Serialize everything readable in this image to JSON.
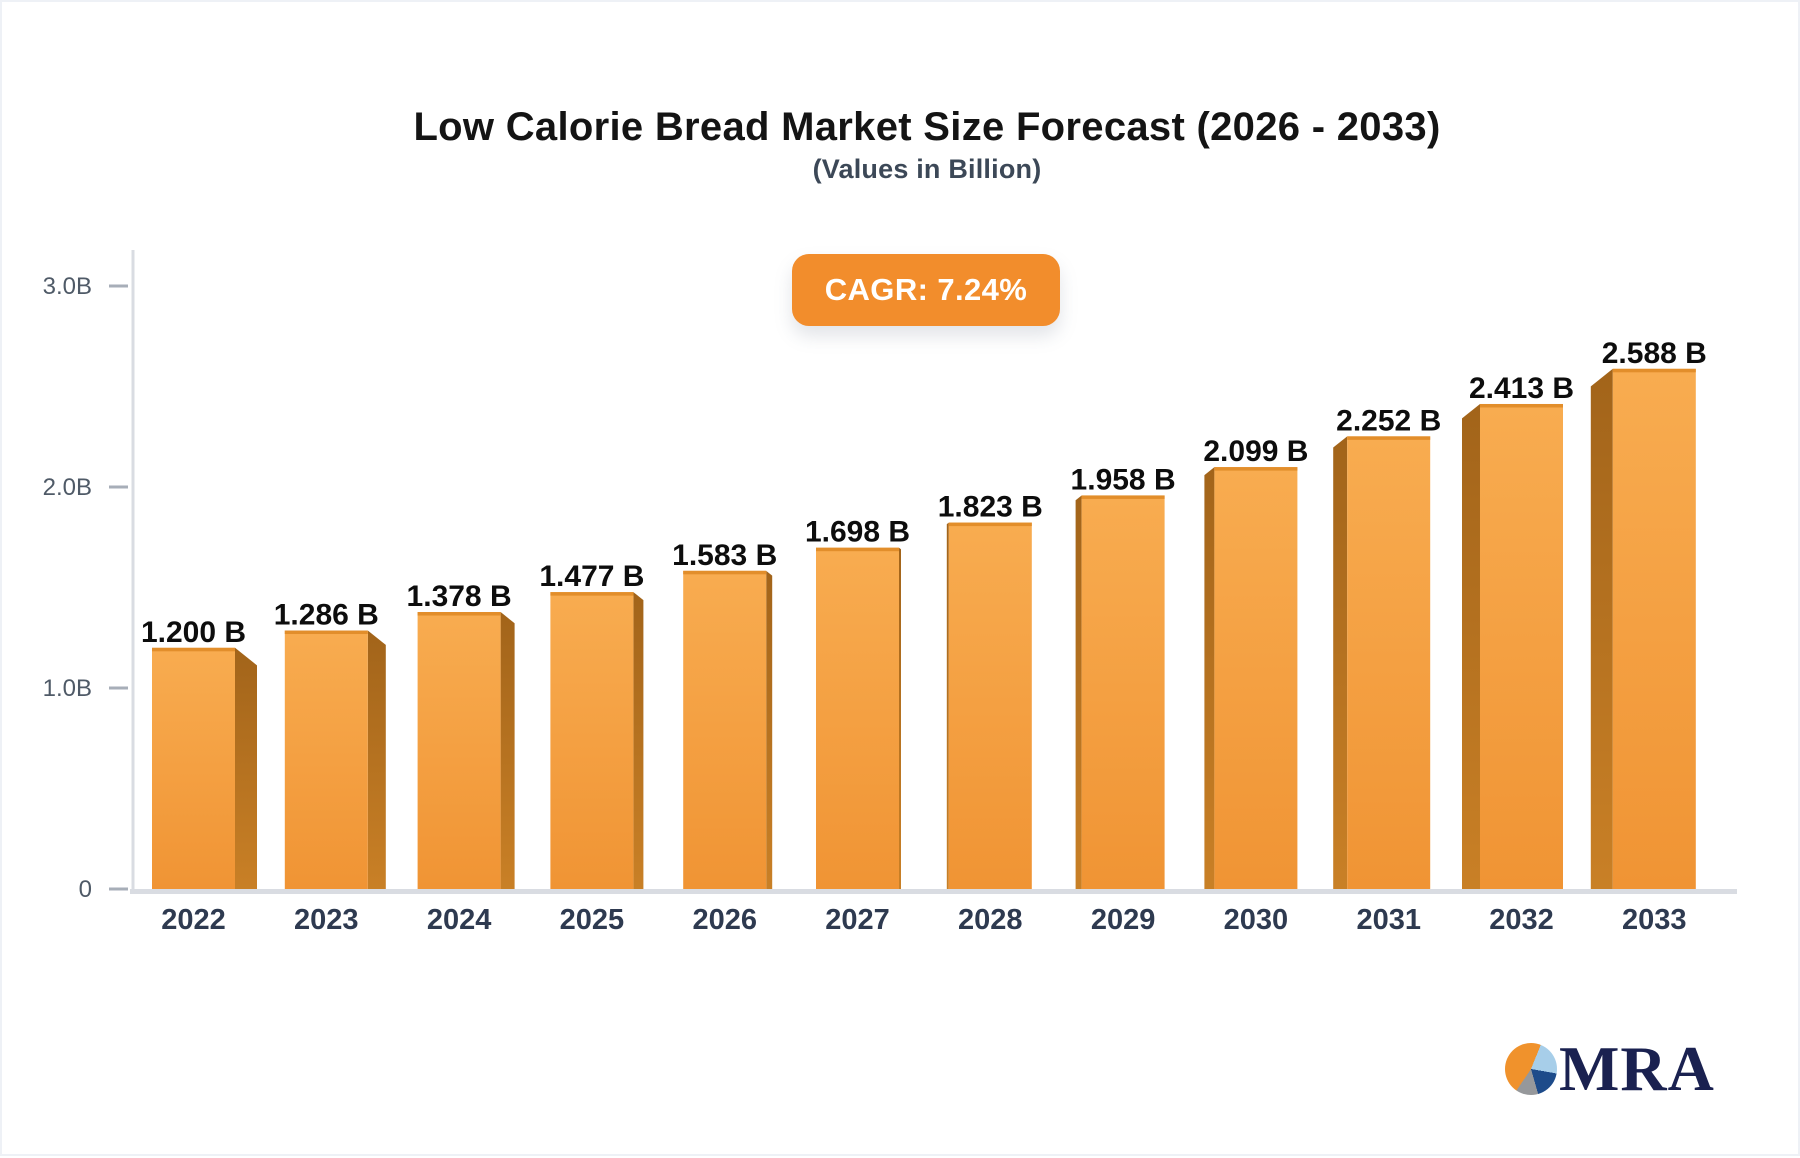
{
  "header": {
    "title": "Low Calorie Bread Market Size Forecast (2026 - 2033)",
    "subtitle": "(Values in Billion)"
  },
  "badge": {
    "label": "CAGR: 7.24%"
  },
  "chart_data": {
    "type": "bar",
    "title": "Low Calorie Bread Market Size Forecast (2026 - 2033)",
    "subtitle": "(Values in Billion)",
    "unit": "Billion",
    "cagr": "7.24%",
    "categories": [
      "2022",
      "2023",
      "2024",
      "2025",
      "2026",
      "2027",
      "2028",
      "2029",
      "2030",
      "2031",
      "2032",
      "2033"
    ],
    "values": [
      1.2,
      1.286,
      1.378,
      1.477,
      1.583,
      1.698,
      1.823,
      1.958,
      2.099,
      2.252,
      2.413,
      2.588
    ],
    "value_labels": [
      "1.200 B",
      "1.286 B",
      "1.378 B",
      "1.477 B",
      "1.583 B",
      "1.698 B",
      "1.823 B",
      "1.958 B",
      "2.099 B",
      "2.252 B",
      "2.413 B",
      "2.588 B"
    ],
    "ylim": [
      0,
      3
    ],
    "yticks": [
      {
        "value": 3,
        "label": "3.0B"
      },
      {
        "value": 2,
        "label": "2.0B"
      },
      {
        "value": 1,
        "label": "1.0B"
      },
      {
        "value": 0,
        "label": "0"
      }
    ],
    "grid": false,
    "legend": false,
    "bar_style": "3d-perspective",
    "colors": {
      "bar_top": "#F8AC50",
      "bar_bottom": "#F09434",
      "bar_edge": "#E28E2B",
      "bar_side_dark": "#A2641A",
      "bar_side_light": "#C98026",
      "axis": "#D9DCE2",
      "tick": "#A7AEB8",
      "tick_label": "#4F5A67",
      "x_label": "#2E3A50",
      "value_label": "#0D0D0D",
      "badge_bg": "#F28D2C",
      "badge_text": "#FFFFFF"
    }
  },
  "logo": {
    "text": "MRA",
    "text_color": "#1A2150",
    "pie_colors": {
      "orange": "#F0922C",
      "light_blue": "#A7CEE9",
      "navy": "#1D4B8A",
      "gray": "#96989B"
    }
  }
}
